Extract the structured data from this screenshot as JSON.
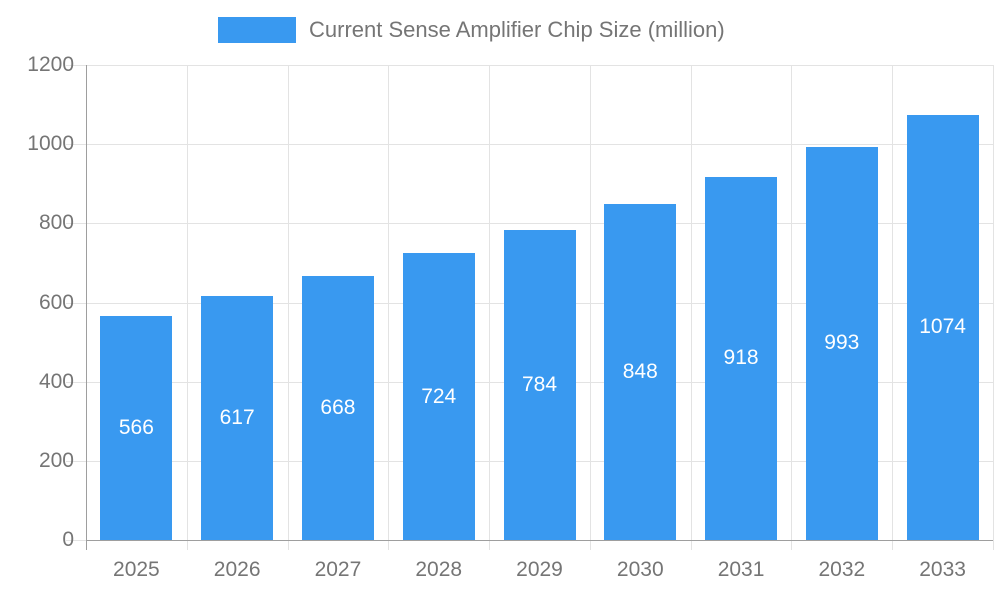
{
  "legend": {
    "label": "Current Sense Amplifier Chip Size (million)"
  },
  "colors": {
    "bar": "#3999f0",
    "axis": "#9e9e9e",
    "grid": "#e3e3e3",
    "tick_label": "#757575",
    "bar_label": "#ffffff",
    "background": "#ffffff"
  },
  "chart_data": {
    "type": "bar",
    "title": "Current Sense Amplifier Chip Size (million)",
    "categories": [
      "2025",
      "2026",
      "2027",
      "2028",
      "2029",
      "2030",
      "2031",
      "2032",
      "2033"
    ],
    "values": [
      566,
      617,
      668,
      724,
      784,
      848,
      918,
      993,
      1074
    ],
    "xlabel": "",
    "ylabel": "",
    "ylim": [
      0,
      1200
    ],
    "yticks": [
      0,
      200,
      400,
      600,
      800,
      1000,
      1200
    ],
    "grid": true,
    "legend_position": "top-center",
    "bar_labels": "inside-centered"
  }
}
